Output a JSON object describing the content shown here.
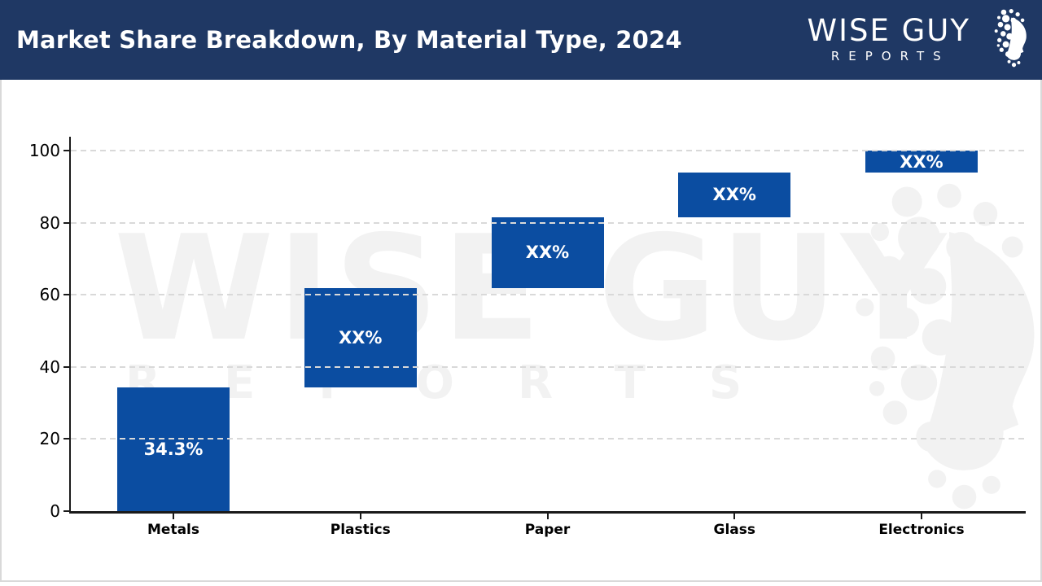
{
  "header": {
    "title": "Market Share Breakdown, By Material Type, 2024",
    "logo": {
      "line1": "WISE GUY",
      "line2": "REPORTS"
    }
  },
  "watermark": {
    "line1": "WISE GUY",
    "line2": "REPORTS"
  },
  "chart_data": {
    "type": "bar",
    "subtype": "stacked-waterfall",
    "title": "Market Share Breakdown, By Material Type, 2024",
    "categories": [
      "Metals",
      "Plastics",
      "Paper",
      "Glass",
      "Electronics"
    ],
    "segments": [
      {
        "category": "Metals",
        "start": 0,
        "end": 34.3,
        "label": "34.3%"
      },
      {
        "category": "Plastics",
        "start": 34.3,
        "end": 61.9,
        "label": "XX%"
      },
      {
        "category": "Paper",
        "start": 61.9,
        "end": 81.5,
        "label": "XX%"
      },
      {
        "category": "Glass",
        "start": 81.5,
        "end": 93.9,
        "label": "XX%"
      },
      {
        "category": "Electronics",
        "start": 93.9,
        "end": 100,
        "label": "XX%"
      }
    ],
    "ylim": [
      0,
      100
    ],
    "yticks": [
      0,
      20,
      40,
      60,
      80,
      100
    ],
    "xlabel": "",
    "ylabel": "",
    "grid": "horizontal-dashed",
    "legend": "none",
    "bar_color": "#0b4da1",
    "bar_label_color": "#ffffff"
  },
  "colors": {
    "header_bg": "#1f3864",
    "header_text": "#ffffff",
    "bar": "#0b4da1",
    "grid": "#d9d9d9",
    "axis": "#1a1a1a",
    "tick_text": "#000000",
    "watermark": "#f2f2f2",
    "page_border": "#d9d9d9"
  }
}
